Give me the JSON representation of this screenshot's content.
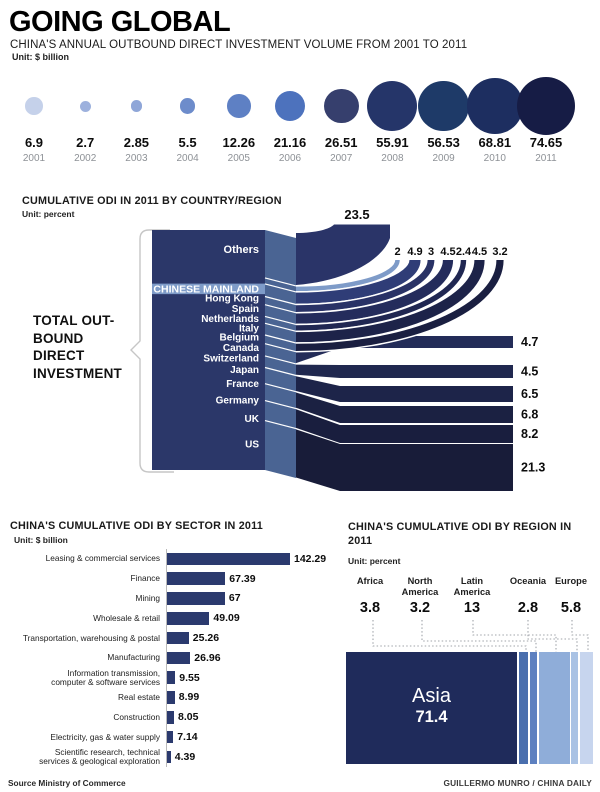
{
  "header": {
    "title": "GOING GLOBAL",
    "subtitle": "CHINA'S ANNUAL OUTBOUND DIRECT INVESTMENT VOLUME FROM 2001 TO 2011",
    "unit": "Unit: $ billion"
  },
  "footer": {
    "source": "Source Ministry of Commerce",
    "credit": "GUILLERMO MUNRO / CHINA DAILY"
  },
  "chart_data": [
    {
      "id": "annual-odi-bubbles",
      "type": "bubble",
      "title": "CHINA'S ANNUAL OUTBOUND DIRECT INVESTMENT VOLUME FROM 2001 TO 2011",
      "unit": "$ billion",
      "categories": [
        "2001",
        "2002",
        "2003",
        "2004",
        "2005",
        "2006",
        "2007",
        "2008",
        "2009",
        "2010",
        "2011"
      ],
      "values": [
        6.9,
        2.7,
        2.85,
        5.5,
        12.26,
        21.16,
        26.51,
        55.91,
        56.53,
        68.81,
        74.65
      ],
      "value_labels": [
        "6.9",
        "2.7",
        "2.85",
        "5.5",
        "12.26",
        "21.16",
        "26.51",
        "55.91",
        "56.53",
        "68.81",
        "74.65"
      ],
      "colors": [
        "#c5d1ea",
        "#9db1dd",
        "#8fa6d8",
        "#6d8ccb",
        "#5e80c4",
        "#4d72bd",
        "#363f6d",
        "#253569",
        "#1e3a68",
        "#1d2e60",
        "#161c45"
      ]
    },
    {
      "id": "cumulative-odi-by-country",
      "type": "sankey",
      "title": "CUMULATIVE ODI IN 2011 BY COUNTRY/REGION",
      "unit": "Unit: percent",
      "total_label": "TOTAL OUT-\nBOUND\nDIRECT\nINVESTMENT",
      "flows": [
        {
          "name": "Others",
          "value": 23.5,
          "dest": "top-wide"
        },
        {
          "name": "CHINESE MAINLAND",
          "value": 2,
          "dest": "top",
          "highlight": true
        },
        {
          "name": "Hong Kong",
          "value": 4.9,
          "dest": "top"
        },
        {
          "name": "Spain",
          "value": 3,
          "dest": "top"
        },
        {
          "name": "Netherlands",
          "value": 4.5,
          "dest": "top"
        },
        {
          "name": "Italy",
          "value": 2.4,
          "dest": "top"
        },
        {
          "name": "Belgium",
          "value": 4.5,
          "dest": "top"
        },
        {
          "name": "Canada",
          "value": 3.2,
          "dest": "top"
        },
        {
          "name": "Switzerland",
          "value": 4.7,
          "dest": "right"
        },
        {
          "name": "Japan",
          "value": 4.5,
          "dest": "right"
        },
        {
          "name": "France",
          "value": 6.5,
          "dest": "right"
        },
        {
          "name": "Germany",
          "value": 6.8,
          "dest": "right"
        },
        {
          "name": "UK",
          "value": 8.2,
          "dest": "right"
        },
        {
          "name": "US",
          "value": 21.3,
          "dest": "right"
        }
      ],
      "value_labels": [
        "23.5",
        "2",
        "4.9",
        "3",
        "4.5",
        "2.4",
        "4.5",
        "3.2",
        "4.7",
        "4.5",
        "6.5",
        "6.8",
        "8.2",
        "21.3"
      ]
    },
    {
      "id": "cumulative-odi-by-sector",
      "type": "bar",
      "title": "CHINA'S CUMULATIVE ODI BY SECTOR IN 2011",
      "unit": "Unit: $ billion",
      "categories": [
        "Leasing & commercial services",
        "Finance",
        "Mining",
        "Wholesale & retail",
        "Transportation, warehousing & postal",
        "Manufacturing",
        "Information transmission,\ncomputer & software services",
        "Real estate",
        "Construction",
        "Electricity, gas & water supply",
        "Scientific research, technical\nservices & geological exploration"
      ],
      "values": [
        142.29,
        67.39,
        67,
        49.09,
        25.26,
        26.96,
        9.55,
        8.99,
        8.05,
        7.14,
        4.39
      ],
      "value_labels": [
        "142.29",
        "67.39",
        "67",
        "49.09",
        "25.26",
        "26.96",
        "9.55",
        "8.99",
        "8.05",
        "7.14",
        "4.39"
      ],
      "bar_color": "#2b3a6e",
      "xlim": [
        0,
        150
      ]
    },
    {
      "id": "cumulative-odi-by-region",
      "type": "stacked-bar",
      "title": "CHINA'S CUMULATIVE ODI BY REGION IN 2011",
      "unit": "Unit: percent",
      "categories": [
        "Asia",
        "Africa",
        "North\nAmerica",
        "Latin\nAmerica",
        "Oceania",
        "Europe"
      ],
      "values": [
        71.4,
        3.8,
        3.2,
        13,
        2.8,
        5.8
      ],
      "value_labels": [
        "71.4",
        "3.8",
        "3.2",
        "13",
        "2.8",
        "5.8"
      ],
      "colors": [
        "#1f2b5b",
        "#4a6fae",
        "#5d80c0",
        "#8fadd9",
        "#a9c2e4",
        "#c7d5ee"
      ]
    }
  ]
}
